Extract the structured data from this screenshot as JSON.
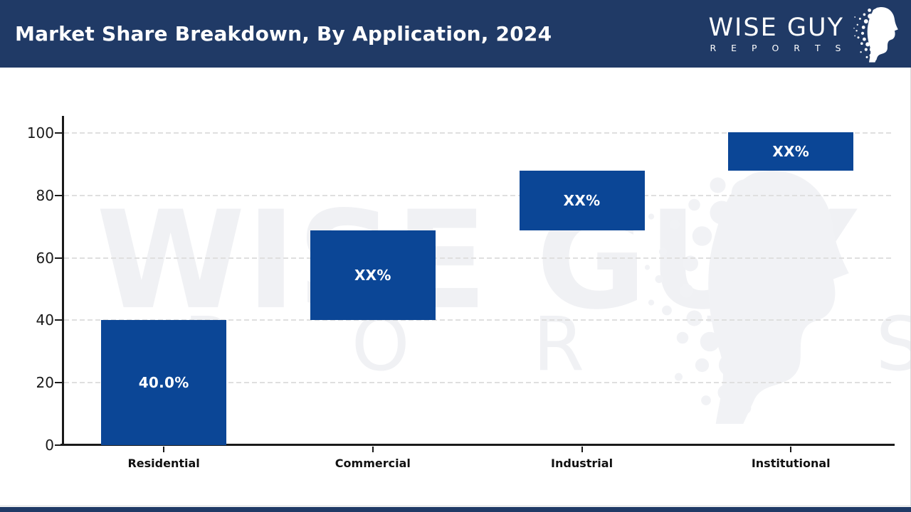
{
  "header": {
    "title": "Market Share Breakdown, By Application, 2024",
    "bg_color": "#203a66",
    "logo": {
      "line1": "WISE GUY",
      "line2": "R E P O R T S"
    }
  },
  "watermark": {
    "line1": "WISE GUY",
    "line2": "P O R T S"
  },
  "chart_data": {
    "type": "bar",
    "subtype": "waterfall-floating-bars",
    "title": "Market Share Breakdown, By Application, 2024",
    "categories": [
      "Residential",
      "Commercial",
      "Industrial",
      "Institutional"
    ],
    "segments": [
      {
        "category": "Residential",
        "start": 0,
        "end": 40,
        "label": "40.0%"
      },
      {
        "category": "Commercial",
        "start": 40,
        "end": 68.8,
        "label": "XX%"
      },
      {
        "category": "Industrial",
        "start": 68.8,
        "end": 88,
        "label": "XX%"
      },
      {
        "category": "Institutional",
        "start": 88,
        "end": 100.3,
        "label": "XX%"
      }
    ],
    "yticks": [
      0,
      20,
      40,
      60,
      80,
      100
    ],
    "ylim": [
      0,
      105
    ],
    "xlabel": "",
    "ylabel": "",
    "grid": "horizontal-dashed",
    "legend": "none",
    "bar_color": "#0b4696",
    "grid_color": "#dfdfdf",
    "axis_color": "#1a1a1a"
  }
}
